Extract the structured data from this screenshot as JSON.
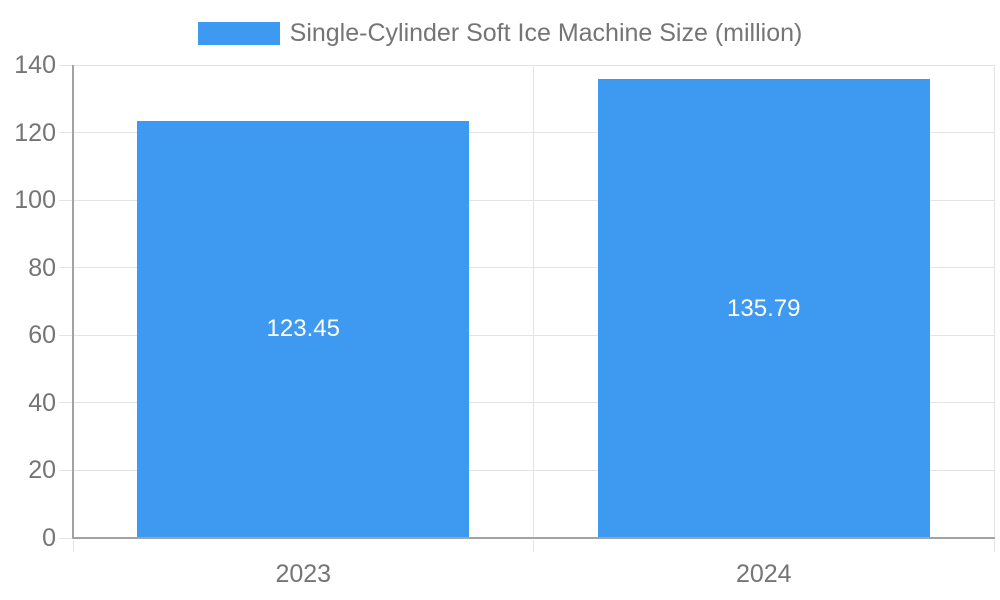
{
  "legend": {
    "label": "Single-Cylinder Soft Ice Machine Size (million)"
  },
  "chart_data": {
    "type": "bar",
    "title": "",
    "categories": [
      "2023",
      "2024"
    ],
    "series": [
      {
        "name": "Single-Cylinder Soft Ice Machine Size (million)",
        "values": [
          123.45,
          135.79
        ]
      }
    ],
    "data_labels": [
      "123.45",
      "135.79"
    ],
    "y_ticks": [
      0,
      20,
      40,
      60,
      80,
      100,
      120,
      140
    ],
    "ylim": [
      0,
      140
    ],
    "xlabel": "",
    "ylabel": "",
    "grid": true,
    "legend_position": "top"
  },
  "colors": {
    "bar": "#3D9AF0",
    "axis_line": "#A3A3A3",
    "gridline": "#E4E4E4",
    "tick_label": "#757575",
    "legend_text": "#757575",
    "data_label": "#FFFFFF",
    "background": "#FFFFFF"
  }
}
